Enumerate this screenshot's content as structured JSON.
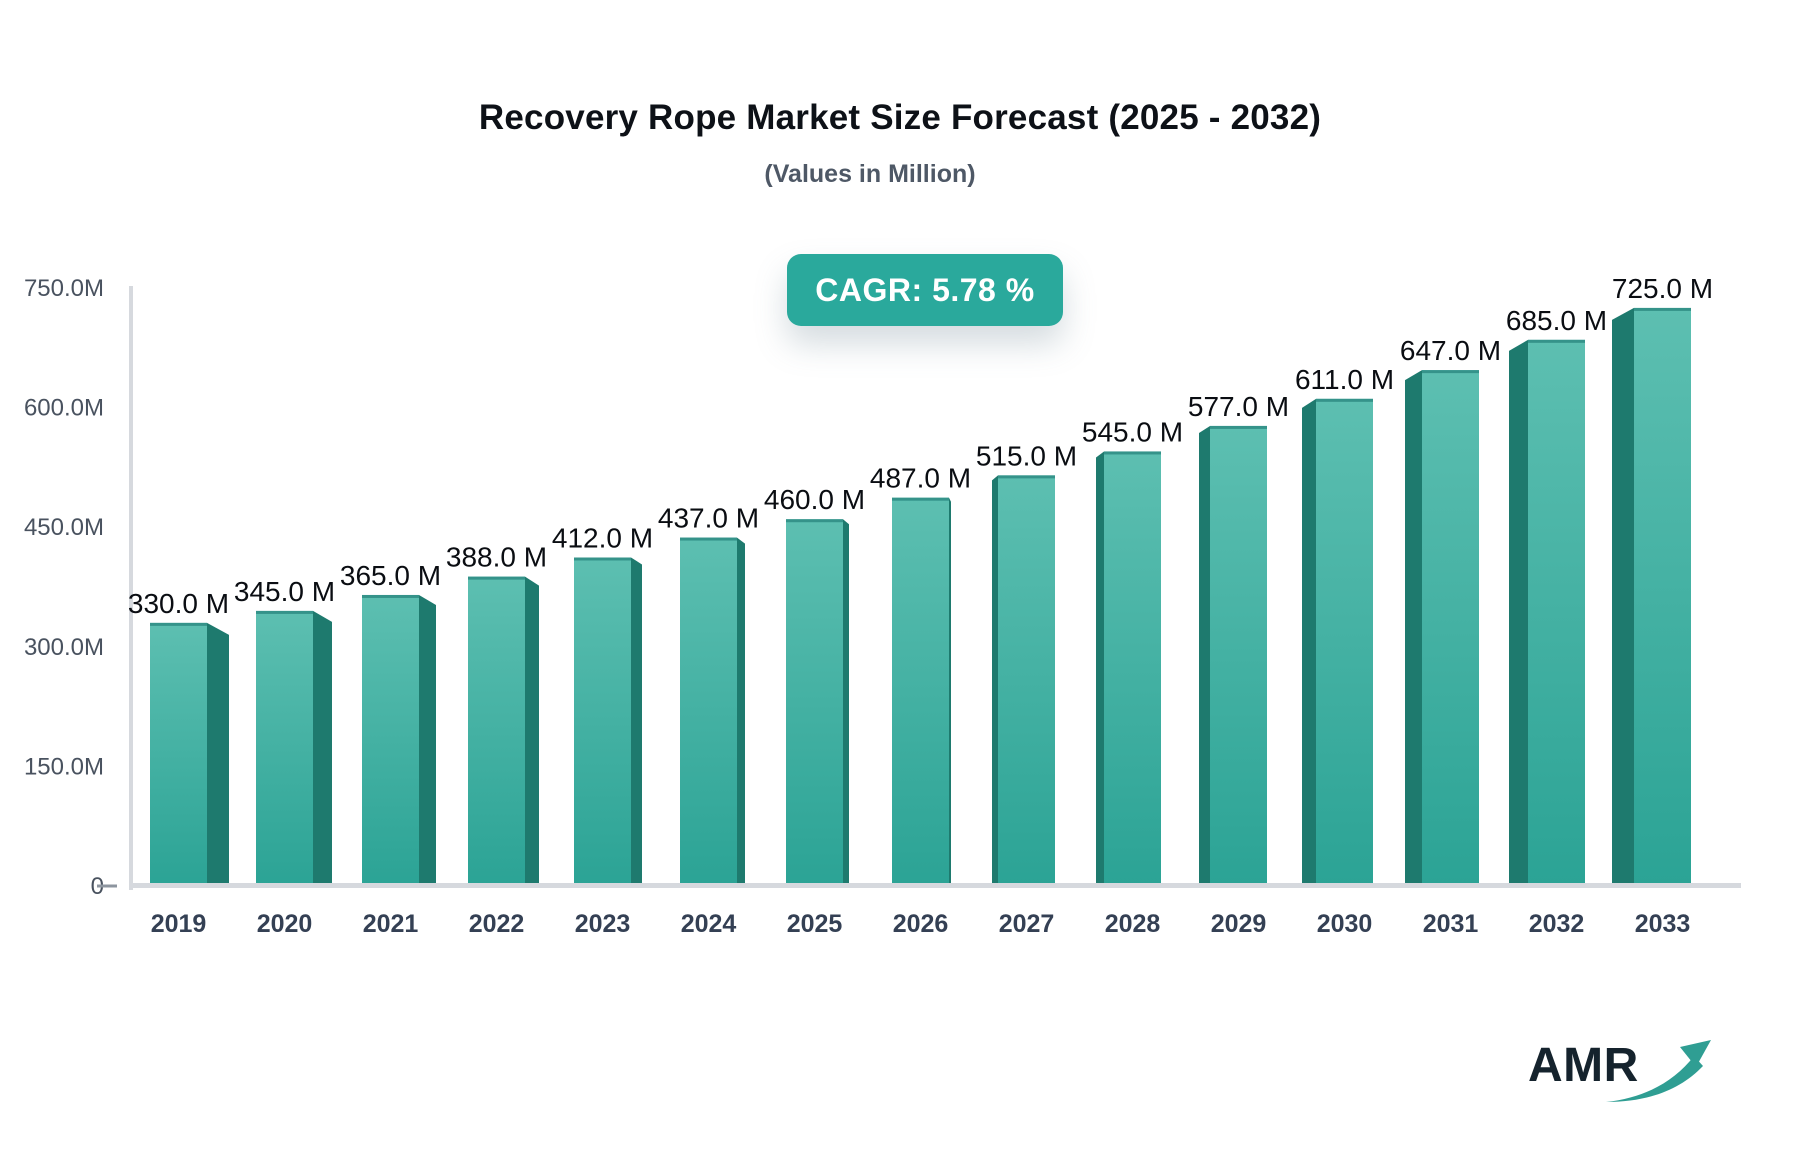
{
  "header": {
    "title": "Recovery Rope Market Size Forecast (2025 - 2032)",
    "subtitle": "(Values in Million)"
  },
  "badge": {
    "label": "CAGR: 5.78 %"
  },
  "logo": {
    "text": "AMR",
    "arrow_icon": "growth-arrow-icon"
  },
  "chart_data": {
    "type": "bar",
    "title": "Recovery Rope Market Size Forecast (2025 - 2032)",
    "subtitle": "(Values in Million)",
    "unit": "Million",
    "cagr": "5.78 %",
    "categories": [
      "2019",
      "2020",
      "2021",
      "2022",
      "2023",
      "2024",
      "2025",
      "2026",
      "2027",
      "2028",
      "2029",
      "2030",
      "2031",
      "2032",
      "2033"
    ],
    "values": [
      330,
      345,
      365,
      388,
      412,
      437,
      460,
      487,
      515,
      545,
      577,
      611,
      647,
      685,
      725
    ],
    "bar_labels": [
      "330.0 M",
      "345.0 M",
      "365.0 M",
      "388.0 M",
      "412.0 M",
      "437.0 M",
      "460.0 M",
      "487.0 M",
      "515.0 M",
      "545.0 M",
      "577.0 M",
      "611.0 M",
      "647.0 M",
      "685.0 M",
      "725.0 M"
    ],
    "y_ticks": [
      "750.0M",
      "600.0M",
      "450.0M",
      "300.0M",
      "150.0M",
      "0"
    ],
    "ylim": [
      0,
      750
    ],
    "xlabel": "",
    "ylabel": "",
    "grid": false,
    "legend": false,
    "bar_style": "pseudo-3d, center vanishing point",
    "colors": {
      "bar_front_top": "#5dbfb1",
      "bar_front_bottom": "#2ba395",
      "bar_side": "#1e7a6e",
      "bar_top_edge": "#35938a",
      "axis": "#d6d9de",
      "tick_dash": "#8d959f",
      "badge_bg": "#2aa99c",
      "title": "#0d1117",
      "subtitle": "#4e5866",
      "value_label": "#0a0d12",
      "x_tick": "#344054",
      "y_tick": "#49525f",
      "logo_text": "#15232d",
      "logo_arrow": "#2f9e93"
    }
  }
}
